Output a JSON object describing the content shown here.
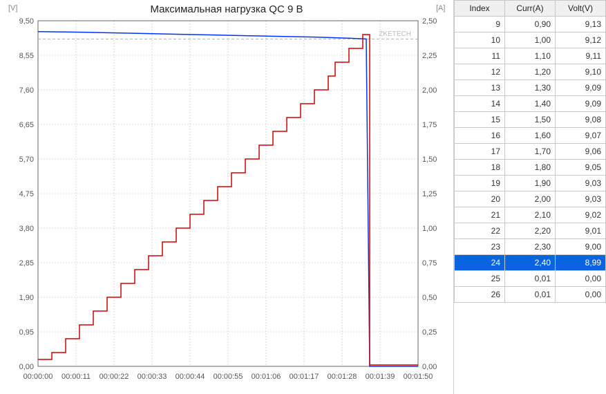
{
  "chart": {
    "title": "Максимальная нагрузка QC 9 B",
    "title_fontsize": 15,
    "title_color": "#222222",
    "watermark": "ZKETECH",
    "watermark_color": "#bcbcbc",
    "background_color": "#ffffff",
    "grid_color": "#bcbcbc",
    "axis_color": "#666666",
    "left_axis_label": "[V]",
    "right_axis_label": "[A]",
    "axis_label_color": "#888888",
    "left_ylim": [
      0,
      9.5
    ],
    "left_ticks": [
      0.0,
      0.95,
      1.9,
      2.85,
      3.8,
      4.75,
      5.7,
      6.65,
      7.6,
      8.55,
      9.5
    ],
    "right_ylim": [
      0,
      2.5
    ],
    "right_ticks": [
      0.0,
      0.25,
      0.5,
      0.75,
      1.0,
      1.25,
      1.5,
      1.75,
      2.0,
      2.25,
      2.5
    ],
    "x_ticks": [
      "00:00:00",
      "00:00:11",
      "00:00:22",
      "00:00:33",
      "00:00:44",
      "00:00:55",
      "00:01:06",
      "00:01:17",
      "00:01:28",
      "00:01:39",
      "00:01:50"
    ],
    "x_domain": [
      0,
      110
    ],
    "tick_fontsize": 11,
    "tick_color": "#555555",
    "voltage_series": {
      "color": "#0033ff",
      "line_width": 1.5,
      "points": [
        [
          0,
          9.2
        ],
        [
          10,
          9.19
        ],
        [
          20,
          9.17
        ],
        [
          30,
          9.15
        ],
        [
          40,
          9.13
        ],
        [
          50,
          9.11
        ],
        [
          60,
          9.09
        ],
        [
          70,
          9.07
        ],
        [
          80,
          9.05
        ],
        [
          90,
          9.02
        ],
        [
          95,
          9.0
        ],
        [
          96,
          0.0
        ],
        [
          110,
          0.0
        ]
      ]
    },
    "current_series": {
      "color": "#d10000",
      "line_width": 1.5,
      "steps": [
        [
          0,
          0.05
        ],
        [
          4,
          0.1
        ],
        [
          8,
          0.2
        ],
        [
          12,
          0.3
        ],
        [
          16,
          0.4
        ],
        [
          20,
          0.5
        ],
        [
          24,
          0.6
        ],
        [
          28,
          0.7
        ],
        [
          32,
          0.8
        ],
        [
          36,
          0.9
        ],
        [
          40,
          1.0
        ],
        [
          44,
          1.1
        ],
        [
          48,
          1.2
        ],
        [
          52,
          1.3
        ],
        [
          56,
          1.4
        ],
        [
          60,
          1.5
        ],
        [
          64,
          1.6
        ],
        [
          68,
          1.7
        ],
        [
          72,
          1.8
        ],
        [
          76,
          1.9
        ],
        [
          80,
          2.0
        ],
        [
          84,
          2.1
        ],
        [
          86,
          2.2
        ],
        [
          90,
          2.3
        ],
        [
          94,
          2.4
        ],
        [
          96,
          0.01
        ],
        [
          110,
          0.01
        ]
      ]
    },
    "reference_line": {
      "y_left": 9.0,
      "dash": "4 3",
      "color": "#b0b0b0"
    }
  },
  "table": {
    "header": [
      "Index",
      "Curr(A)",
      "Volt(V)"
    ],
    "highlight_index": 24,
    "rows": [
      [
        9,
        "0,90",
        "9,13"
      ],
      [
        10,
        "1,00",
        "9,12"
      ],
      [
        11,
        "1,10",
        "9,11"
      ],
      [
        12,
        "1,20",
        "9,10"
      ],
      [
        13,
        "1,30",
        "9,09"
      ],
      [
        14,
        "1,40",
        "9,09"
      ],
      [
        15,
        "1,50",
        "9,08"
      ],
      [
        16,
        "1,60",
        "9,07"
      ],
      [
        17,
        "1,70",
        "9,06"
      ],
      [
        18,
        "1,80",
        "9,05"
      ],
      [
        19,
        "1,90",
        "9,03"
      ],
      [
        20,
        "2,00",
        "9,03"
      ],
      [
        21,
        "2,10",
        "9,02"
      ],
      [
        22,
        "2,20",
        "9,01"
      ],
      [
        23,
        "2,30",
        "9,00"
      ],
      [
        24,
        "2,40",
        "8,99"
      ],
      [
        25,
        "0,01",
        "0,00"
      ],
      [
        26,
        "0,01",
        "0,00"
      ]
    ]
  }
}
